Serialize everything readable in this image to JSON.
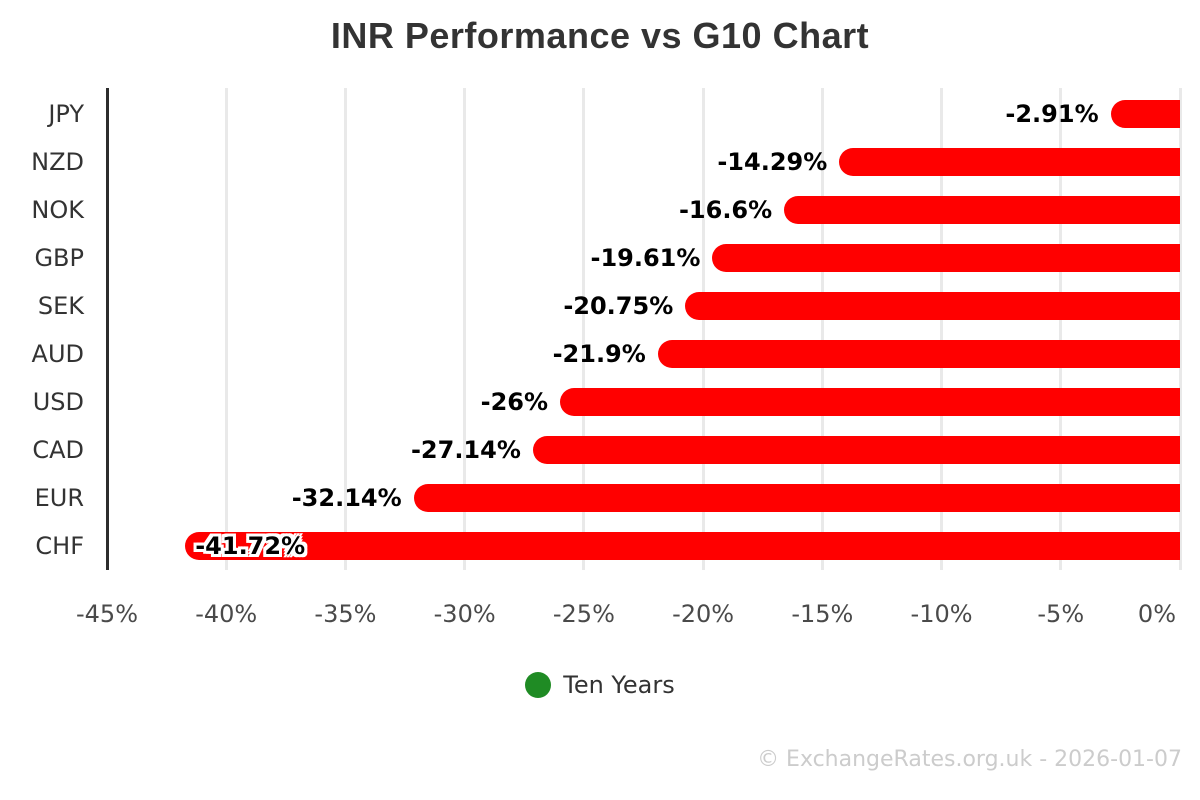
{
  "chart": {
    "title": "INR Performance vs G10 Chart",
    "legend_label": "Ten Years",
    "legend_color": "#1f8b24"
  },
  "footer": {
    "text": "© ExchangeRates.org.uk - 2026-01-07"
  },
  "chart_data": {
    "type": "bar",
    "orientation": "horizontal",
    "title": "INR Performance vs G10 Chart",
    "categories": [
      "JPY",
      "NZD",
      "NOK",
      "GBP",
      "SEK",
      "AUD",
      "USD",
      "CAD",
      "EUR",
      "CHF"
    ],
    "series": [
      {
        "name": "Ten Years",
        "values": [
          -2.91,
          -14.29,
          -16.6,
          -19.61,
          -20.75,
          -21.9,
          -26,
          -27.14,
          -32.14,
          -41.72
        ],
        "value_labels": [
          "-2.91%",
          "-14.29%",
          "-16.6%",
          "-19.61%",
          "-20.75%",
          "-21.9%",
          "-26%",
          "-27.14%",
          "-32.14%",
          "-41.72%"
        ],
        "color": "#ff0000"
      }
    ],
    "xlabel": "",
    "ylabel": "",
    "xlim": [
      -45,
      0
    ],
    "x_tick_values": [
      -45,
      -40,
      -35,
      -30,
      -25,
      -20,
      -15,
      -10,
      -5,
      0
    ],
    "x_tick_labels": [
      "-45%",
      "-40%",
      "-35%",
      "-30%",
      "-25%",
      "-20%",
      "-15%",
      "-10%",
      "-5%",
      "0%"
    ],
    "grid": true,
    "legend_position": "bottom"
  }
}
